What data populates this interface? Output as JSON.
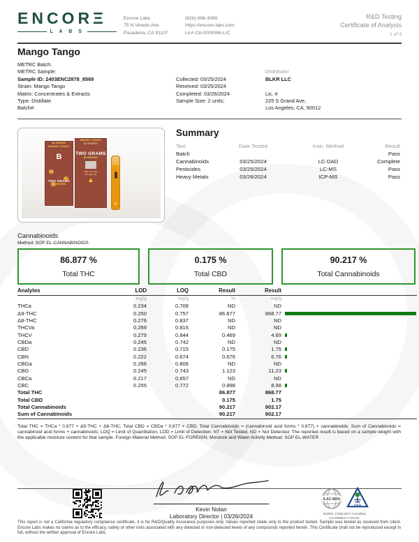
{
  "colors": {
    "brand_green": "#20503c",
    "box_border_green": "#2e962e",
    "bar_green": "#117a11"
  },
  "header": {
    "brand_name": "ENCORΞ",
    "brand_sub": "L A B S",
    "lab_address": [
      "Encore Labs",
      "75 N Vinedo Ave.",
      "Pasadena, CA 91107"
    ],
    "lab_contact": [
      "(626) 696-3086",
      "https://encore-labs.com",
      "Lic# C8-0000086-LIC"
    ],
    "doc_type": "R&D Testing",
    "doc_title": "Certificate of Analysis",
    "page_number": "1 of 3"
  },
  "sample": {
    "title": "Mango Tango",
    "left_lines": [
      {
        "text": "METRC Batch:"
      },
      {
        "text": "METRC Sample:"
      },
      {
        "text": "Sample ID: 2403ENC2878_8569",
        "bold": true
      },
      {
        "text": "Strain: Mango Tango"
      },
      {
        "text": "Matrix: Concentrates & Extracts"
      },
      {
        "text": "Type: Distillate"
      },
      {
        "text": "Batch#:"
      }
    ],
    "date_lines": [
      {
        "text": "Collected: 03/25/2024"
      },
      {
        "text": "Received: 03/25/2024"
      },
      {
        "text": "Completed: 03/26/2024"
      },
      {
        "text": "Sample Size: 2 units;"
      }
    ],
    "distributor_lines": [
      {
        "text": "Distributor",
        "gray": true
      },
      {
        "text": "BLKR LLC",
        "bold": true
      },
      {
        "text": ""
      },
      {
        "text": "Lic. #"
      },
      {
        "text": "225 S Grand Ave,"
      },
      {
        "text": "Los Angeles, CA, 90012"
      }
    ]
  },
  "product_photo": {
    "brand_text": "BLINKERS",
    "flavor_text": "MANGO TANGO",
    "size_text": "TWO GRAMS",
    "logo_letter": "B"
  },
  "summary": {
    "heading": "Summary",
    "columns": [
      "Test",
      "Date Tested",
      "Instr. Method",
      "Result"
    ],
    "rows": [
      {
        "test": "Batch",
        "date": "",
        "method": "",
        "result": "Pass"
      },
      {
        "test": "Cannabinoids",
        "date": "03/25/2024",
        "method": "LC-DAD",
        "result": "Complete"
      },
      {
        "test": "Pesticides",
        "date": "03/25/2024",
        "method": "LC-MS",
        "result": "Pass"
      },
      {
        "test": "Heavy Metals",
        "date": "03/26/2024",
        "method": "ICP-MS",
        "result": "Pass"
      }
    ]
  },
  "cannabinoids": {
    "heading": "Cannabinoids",
    "method": "Method: SOP EL-CANNABINOIDS",
    "totals": [
      {
        "value": "86.877 %",
        "label": "Total THC"
      },
      {
        "value": "0.175 %",
        "label": "Total CBD"
      },
      {
        "value": "90.217 %",
        "label": "Total Cannabinoids"
      }
    ],
    "table": {
      "columns": [
        "Analytes",
        "LOD",
        "LOQ",
        "Result",
        "Result"
      ],
      "units": [
        "mg/g",
        "mg/g",
        "%",
        "mg/g"
      ],
      "bar_max_mgg": 868.77,
      "rows": [
        {
          "analyte": "THCa",
          "lod": "0.234",
          "loq": "0.708",
          "pct": "ND",
          "mgg": "ND",
          "bar": 0
        },
        {
          "analyte": "Δ9-THC",
          "lod": "0.250",
          "loq": "0.757",
          "pct": "86.877",
          "mgg": "868.77",
          "bar": 868.77
        },
        {
          "analyte": "Δ8-THC",
          "lod": "0.276",
          "loq": "0.837",
          "pct": "ND",
          "mgg": "ND",
          "bar": 0
        },
        {
          "analyte": "THCVa",
          "lod": "0.269",
          "loq": "0.816",
          "pct": "ND",
          "mgg": "ND",
          "bar": 0
        },
        {
          "analyte": "THCV",
          "lod": "0.279",
          "loq": "0.844",
          "pct": "0.469",
          "mgg": "4.69",
          "bar": 4.69
        },
        {
          "analyte": "CBDa",
          "lod": "0.245",
          "loq": "0.742",
          "pct": "ND",
          "mgg": "ND",
          "bar": 0
        },
        {
          "analyte": "CBD",
          "lod": "0.236",
          "loq": "0.715",
          "pct": "0.175",
          "mgg": "1.75",
          "bar": 1.75
        },
        {
          "analyte": "CBN",
          "lod": "0.222",
          "loq": "0.674",
          "pct": "0.676",
          "mgg": "6.76",
          "bar": 6.76
        },
        {
          "analyte": "CBGa",
          "lod": "0.266",
          "loq": "0.806",
          "pct": "ND",
          "mgg": "ND",
          "bar": 0
        },
        {
          "analyte": "CBG",
          "lod": "0.245",
          "loq": "0.743",
          "pct": "1.123",
          "mgg": "11.23",
          "bar": 11.23
        },
        {
          "analyte": "CBCa",
          "lod": "0.217",
          "loq": "0.657",
          "pct": "ND",
          "mgg": "ND",
          "bar": 0
        },
        {
          "analyte": "CBC",
          "lod": "0.255",
          "loq": "0.772",
          "pct": "0.898",
          "mgg": "8.98",
          "bar": 8.98
        },
        {
          "analyte": "Total THC",
          "lod": "",
          "loq": "",
          "pct": "86.877",
          "mgg": "868.77",
          "bar": 0,
          "total": true
        },
        {
          "analyte": "Total CBD",
          "lod": "",
          "loq": "",
          "pct": "0.175",
          "mgg": "1.75",
          "bar": 0,
          "total": true
        },
        {
          "analyte": "Total Cannabinoids",
          "lod": "",
          "loq": "",
          "pct": "90.217",
          "mgg": "902.17",
          "bar": 0,
          "total": true
        },
        {
          "analyte": "Sum of Cannabinoids",
          "lod": "",
          "loq": "",
          "pct": "90.217",
          "mgg": "902.17",
          "bar": 0,
          "total": true
        }
      ]
    },
    "footnote": "Total THC = THCa * 0.877 + Δ9-THC + Δ8-THC; Total CBD = CBDa * 0.877 + CBD; Total Cannabinoids = (cannabinoid acid forms * 0.877) + cannabinoids; Sum of Cannabinoids = cannabinoid acid forms + cannabinoids; LOQ = Limit of Quantitation; LOD = Limit of Detection; NT = Not Tested; ND = Not Detected. The reported result is based on a sample weight with the applicable moisture content for that sample. Foreign Material Method: SOP EL-FOREIGN; Moisture and Water Activity Method: SOP EL-WATER"
  },
  "footer": {
    "signer_name": "Kevin Nolan",
    "signer_title": "Laboratory Director | 03/26/2024",
    "accreditation_line1": "ISO/IEC 17025:2017 Accredited",
    "accreditation_line2": "Accreditation # 101411",
    "disclaimer": "This report is not a California regulatory compliance certificate, it is for R&D/Quality Assurance purposes only. Values reported relate only to the product tested. Sample was tested as received from client. Encore Labs makes no claims as to the efficacy, safety or other risks associated with any detected or non-detected levels of any compounds reported herein. This Certificate shall not be reproduced except in full, without the written approval of Encore Labs."
  }
}
